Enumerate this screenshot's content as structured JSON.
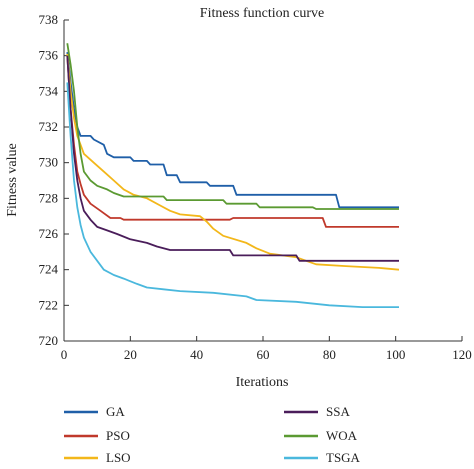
{
  "chart_data": {
    "type": "line",
    "title": "Fitness function curve",
    "xlabel": "Iterations",
    "ylabel": "Fitness value",
    "xlim": [
      0,
      120
    ],
    "ylim": [
      720,
      738
    ],
    "xticks": [
      0,
      20,
      40,
      60,
      80,
      100,
      120
    ],
    "yticks": [
      720,
      722,
      724,
      726,
      728,
      730,
      732,
      734,
      736,
      738
    ],
    "grid": false,
    "legend_position": "bottom",
    "series": [
      {
        "name": "GA",
        "color": "#1f5fa8",
        "points": [
          [
            1,
            736.2
          ],
          [
            2,
            734.5
          ],
          [
            3,
            733.0
          ],
          [
            4,
            732.0
          ],
          [
            5,
            731.5
          ],
          [
            8,
            731.5
          ],
          [
            9,
            731.3
          ],
          [
            12,
            731.0
          ],
          [
            13,
            730.5
          ],
          [
            15,
            730.3
          ],
          [
            20,
            730.3
          ],
          [
            21,
            730.1
          ],
          [
            25,
            730.1
          ],
          [
            26,
            729.9
          ],
          [
            30,
            729.9
          ],
          [
            31,
            729.3
          ],
          [
            34,
            729.3
          ],
          [
            35,
            728.9
          ],
          [
            43,
            728.9
          ],
          [
            44,
            728.7
          ],
          [
            51,
            728.7
          ],
          [
            52,
            728.2
          ],
          [
            82,
            728.2
          ],
          [
            83,
            727.5
          ],
          [
            101,
            727.5
          ]
        ]
      },
      {
        "name": "PSO",
        "color": "#c0392b",
        "points": [
          [
            1,
            736.0
          ],
          [
            2,
            733.0
          ],
          [
            3,
            731.0
          ],
          [
            4,
            729.5
          ],
          [
            5,
            728.8
          ],
          [
            6,
            728.2
          ],
          [
            8,
            727.7
          ],
          [
            11,
            727.3
          ],
          [
            14,
            726.9
          ],
          [
            17,
            726.9
          ],
          [
            18,
            726.8
          ],
          [
            50,
            726.8
          ],
          [
            51,
            726.9
          ],
          [
            78,
            726.9
          ],
          [
            79,
            726.4
          ],
          [
            101,
            726.4
          ]
        ]
      },
      {
        "name": "LSO",
        "color": "#f3b71a",
        "points": [
          [
            1,
            736.1
          ],
          [
            2,
            734.0
          ],
          [
            3,
            732.5
          ],
          [
            4,
            731.5
          ],
          [
            6,
            730.5
          ],
          [
            9,
            730.0
          ],
          [
            12,
            729.5
          ],
          [
            15,
            729.0
          ],
          [
            18,
            728.5
          ],
          [
            21,
            728.2
          ],
          [
            25,
            728.0
          ],
          [
            29,
            727.6
          ],
          [
            32,
            727.3
          ],
          [
            35,
            727.1
          ],
          [
            41,
            727.0
          ],
          [
            43,
            726.7
          ],
          [
            45,
            726.3
          ],
          [
            48,
            725.9
          ],
          [
            55,
            725.5
          ],
          [
            58,
            725.2
          ],
          [
            62,
            724.9
          ],
          [
            70,
            724.7
          ],
          [
            73,
            724.5
          ],
          [
            76,
            724.3
          ],
          [
            85,
            724.2
          ],
          [
            95,
            724.1
          ],
          [
            101,
            724.0
          ]
        ]
      },
      {
        "name": "SSA",
        "color": "#4a1d5a",
        "points": [
          [
            1,
            736.0
          ],
          [
            2,
            733.0
          ],
          [
            3,
            730.5
          ],
          [
            4,
            729.0
          ],
          [
            5,
            728.0
          ],
          [
            6,
            727.3
          ],
          [
            8,
            726.8
          ],
          [
            10,
            726.4
          ],
          [
            13,
            726.2
          ],
          [
            16,
            726.0
          ],
          [
            20,
            725.7
          ],
          [
            25,
            725.5
          ],
          [
            28,
            725.3
          ],
          [
            32,
            725.1
          ],
          [
            50,
            725.1
          ],
          [
            51,
            724.8
          ],
          [
            70,
            724.8
          ],
          [
            71,
            724.5
          ],
          [
            101,
            724.5
          ]
        ]
      },
      {
        "name": "WOA",
        "color": "#5b9a32",
        "points": [
          [
            1,
            736.7
          ],
          [
            2,
            735.5
          ],
          [
            3,
            734.0
          ],
          [
            4,
            732.0
          ],
          [
            5,
            730.5
          ],
          [
            6,
            729.5
          ],
          [
            8,
            729.0
          ],
          [
            10,
            728.7
          ],
          [
            13,
            728.5
          ],
          [
            15,
            728.3
          ],
          [
            18,
            728.1
          ],
          [
            30,
            728.1
          ],
          [
            31,
            727.9
          ],
          [
            48,
            727.9
          ],
          [
            49,
            727.7
          ],
          [
            58,
            727.7
          ],
          [
            59,
            727.5
          ],
          [
            75,
            727.5
          ],
          [
            76,
            727.4
          ],
          [
            101,
            727.4
          ]
        ]
      },
      {
        "name": "TSGA",
        "color": "#4ab8dd",
        "points": [
          [
            1,
            734.5
          ],
          [
            2,
            731.5
          ],
          [
            3,
            729.0
          ],
          [
            4,
            727.5
          ],
          [
            5,
            726.5
          ],
          [
            6,
            725.8
          ],
          [
            8,
            725.0
          ],
          [
            10,
            724.5
          ],
          [
            12,
            724.0
          ],
          [
            15,
            723.7
          ],
          [
            18,
            723.5
          ],
          [
            22,
            723.2
          ],
          [
            25,
            723.0
          ],
          [
            30,
            722.9
          ],
          [
            35,
            722.8
          ],
          [
            45,
            722.7
          ],
          [
            55,
            722.5
          ],
          [
            58,
            722.3
          ],
          [
            70,
            722.2
          ],
          [
            80,
            722.0
          ],
          [
            90,
            721.9
          ],
          [
            101,
            721.9
          ]
        ]
      }
    ]
  }
}
